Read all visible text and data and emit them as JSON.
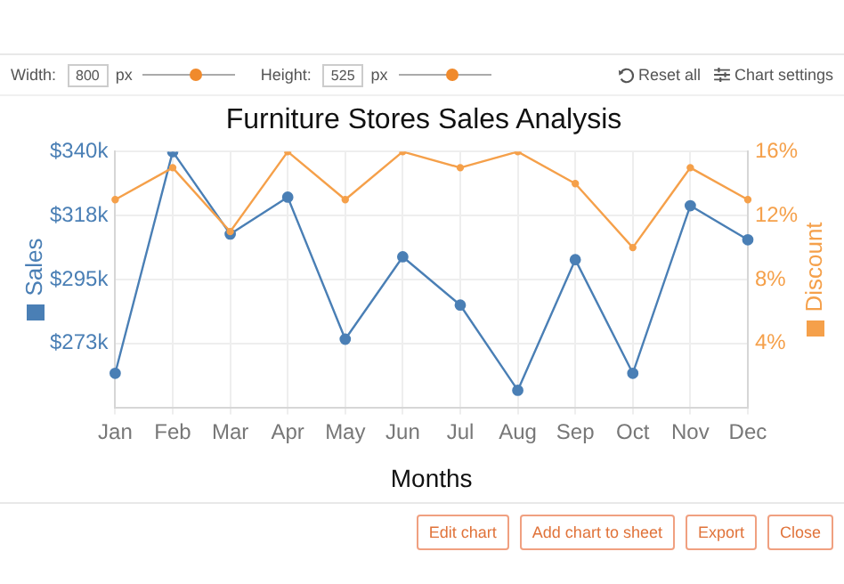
{
  "chart_data": {
    "type": "line",
    "title": "Furniture Stores Sales Analysis",
    "xlabel": "Months",
    "ylabel": "Sales",
    "y2label": "Discount",
    "categories": [
      "Jan",
      "Feb",
      "Mar",
      "Apr",
      "May",
      "Jun",
      "Jul",
      "Aug",
      "Sep",
      "Oct",
      "Nov",
      "Dec"
    ],
    "series": [
      {
        "color": "#4a7fb5",
        "values": [
          262,
          340,
          311,
          324,
          274,
          303,
          286,
          256,
          302,
          262,
          321,
          309
        ]
      },
      {
        "color": "#f5a04a",
        "axis": "y2",
        "values": [
          13,
          15,
          11,
          16,
          13,
          16,
          15,
          16,
          14,
          10,
          15,
          13
        ]
      }
    ],
    "ylim": [
      250,
      340
    ],
    "yticks": [
      {
        "value": 272.5,
        "label": "$273k"
      },
      {
        "value": 295,
        "label": "$295k"
      },
      {
        "value": 317.5,
        "label": "$318k"
      },
      {
        "value": 340,
        "label": "$340k"
      }
    ],
    "y2lim": [
      0,
      16
    ],
    "y2ticks": [
      {
        "value": 4,
        "label": "4%"
      },
      {
        "value": 8,
        "label": "8%"
      },
      {
        "value": 12,
        "label": "12%"
      },
      {
        "value": 16,
        "label": "16%"
      }
    ],
    "grid": true,
    "legend": false,
    "marker": "circle",
    "line_style": "solid",
    "annotations": [
      "Width:",
      "800",
      "px",
      "Height:",
      "525",
      "px",
      "Reset all",
      "Chart settings",
      "Edit chart",
      "Add chart to sheet",
      "Export",
      "Close"
    ]
  }
}
